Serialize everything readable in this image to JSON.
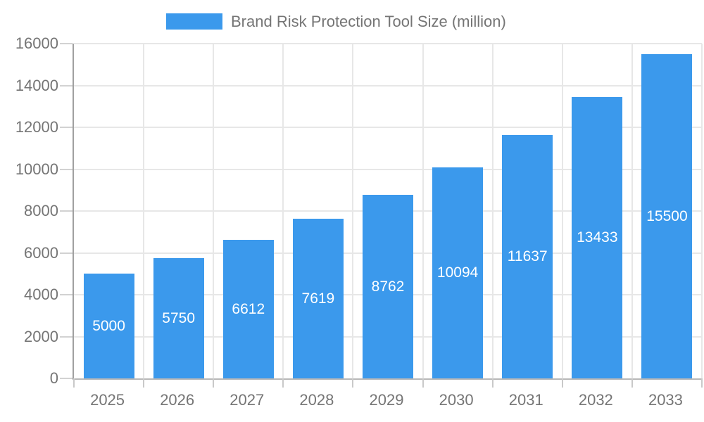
{
  "legend": {
    "label": "Brand Risk Protection Tool Size (million)"
  },
  "colors": {
    "bar": "#3b99ec",
    "bar_label_text": "#ffffff",
    "axis_text": "#757575",
    "gridline": "#e7e7e7",
    "y_axis_line": "#a0a0a0",
    "x_axis_line": "#b8b8b8",
    "background": "#ffffff"
  },
  "chart_data": {
    "type": "bar",
    "title": "Brand Risk Protection Tool Size (million)",
    "categories": [
      "2025",
      "2026",
      "2027",
      "2028",
      "2029",
      "2030",
      "2031",
      "2032",
      "2033"
    ],
    "series": [
      {
        "name": "Brand Risk Protection Tool Size (million)",
        "values": [
          5000,
          5750,
          6612,
          7619,
          8762,
          10094,
          11637,
          13433,
          15500
        ]
      }
    ],
    "value_labels": [
      5000,
      5750,
      6612,
      7619,
      8762,
      10094,
      11637,
      13433,
      15500
    ],
    "value_label_position": "inside-center",
    "xlabel": "",
    "ylabel": "",
    "ylim": [
      0,
      16000
    ],
    "yticks": [
      0,
      2000,
      4000,
      6000,
      8000,
      10000,
      12000,
      14000,
      16000
    ],
    "grid": true,
    "grid_vertical_at_category_boundaries": true,
    "legend_position": "top-center"
  }
}
